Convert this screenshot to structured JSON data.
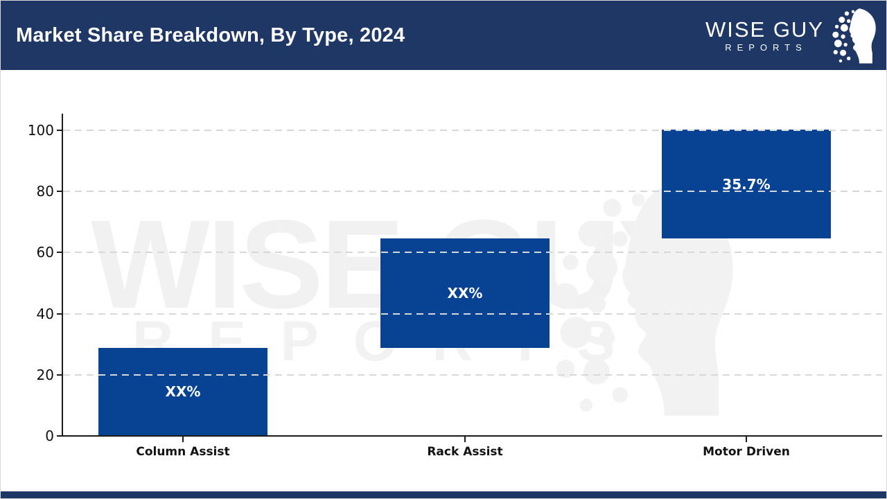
{
  "header": {
    "title": "Market Share Breakdown, By Type, 2024",
    "logo": {
      "name": "WISE GUY",
      "sub": "REPORTS"
    }
  },
  "watermark": {
    "line1": "WISE GUY",
    "line2": "REPORTS"
  },
  "colors": {
    "header_bg": "#1e3765",
    "footer_bg": "#1e3765",
    "bar": "#084292",
    "grid": "#d8d8d8",
    "axis": "#1a1a1a",
    "watermark": "#f1f1f1"
  },
  "chart_data": {
    "type": "bar",
    "variant": "waterfall",
    "title": "Market Share Breakdown, By Type, 2024",
    "categories": [
      "Column Assist",
      "Rack Assist",
      "Motor Driven"
    ],
    "segments": [
      {
        "category": "Column Assist",
        "start": 0,
        "end": 28.6,
        "label": "XX%"
      },
      {
        "category": "Rack Assist",
        "start": 28.6,
        "end": 64.3,
        "label": "XX%"
      },
      {
        "category": "Motor Driven",
        "start": 64.3,
        "end": 100.0,
        "label": "35.7%"
      }
    ],
    "y_ticks": [
      0,
      20,
      40,
      60,
      80,
      100
    ],
    "ylim": [
      0,
      105
    ],
    "xlabel": "",
    "ylabel": "",
    "grid": "horizontal-dashed",
    "legend": "none"
  }
}
